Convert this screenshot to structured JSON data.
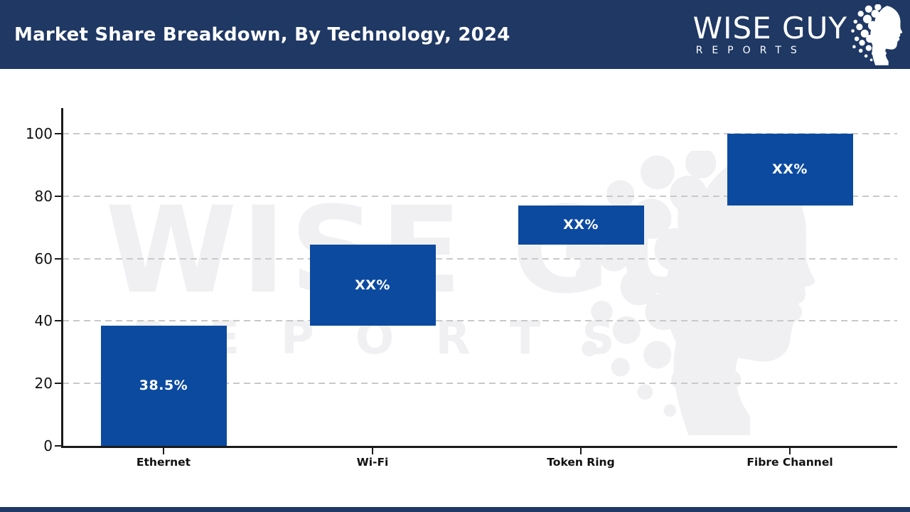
{
  "header": {
    "title": "Market Share Breakdown, By Technology, 2024",
    "logo": {
      "line1": "WISE GUY",
      "line2": "REPORTS"
    }
  },
  "watermark": {
    "line1": "WISE GUY",
    "line2": "REPORTS"
  },
  "colors": {
    "header_bg": "#1F3864",
    "footer_bg": "#1F3864",
    "bar": "#0C4AA0",
    "bar_label": "#FFFFFF",
    "grid": "#C9C9C9",
    "axis": "#1A1A1A",
    "watermark": "#F0F0F2"
  },
  "chart_data": {
    "type": "bar",
    "subtype": "waterfall",
    "title": "Market Share Breakdown, By Technology, 2024",
    "categories": [
      "Ethernet",
      "Wi-Fi",
      "Token Ring",
      "Fibre Channel"
    ],
    "segments": [
      {
        "category": "Ethernet",
        "start": 0,
        "end": 38.5,
        "label": "38.5%"
      },
      {
        "category": "Wi-Fi",
        "start": 38.5,
        "end": 64.5,
        "label": "XX%"
      },
      {
        "category": "Token Ring",
        "start": 64.5,
        "end": 77,
        "label": "XX%"
      },
      {
        "category": "Fibre Channel",
        "start": 77,
        "end": 100,
        "label": "XX%"
      }
    ],
    "ylim": [
      0,
      100
    ],
    "yticks": [
      0,
      20,
      40,
      60,
      80,
      100
    ],
    "xlabel": "",
    "ylabel": "",
    "grid": "dashed-horizontal",
    "legend": "none"
  }
}
